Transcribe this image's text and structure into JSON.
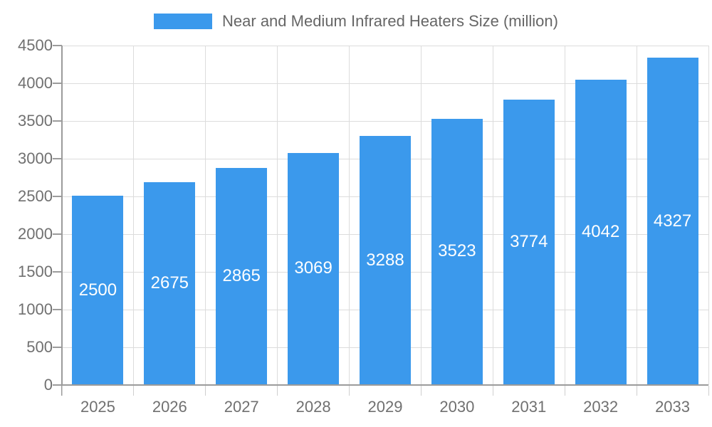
{
  "legend": {
    "label": "Near and Medium Infrared Heaters Size (million)"
  },
  "chart_data": {
    "type": "bar",
    "title": "Near and Medium Infrared Heaters Size (million)",
    "categories": [
      "2025",
      "2026",
      "2027",
      "2028",
      "2029",
      "2030",
      "2031",
      "2032",
      "2033"
    ],
    "series": [
      {
        "name": "Near and Medium Infrared Heaters Size (million)",
        "values": [
          2500,
          2675,
          2865,
          3069,
          3288,
          3523,
          3774,
          4042,
          4327
        ]
      }
    ],
    "xlabel": "",
    "ylabel": "",
    "ylim": [
      0,
      4500
    ],
    "ytick_step": 500,
    "yticks": [
      0,
      500,
      1000,
      1500,
      2000,
      2500,
      3000,
      3500,
      4000,
      4500
    ],
    "grid": true,
    "legend_position": "top-center",
    "bar_color": "#3b99ec",
    "bar_label_color": "#ffffff",
    "bar_label_position": "inside-center",
    "axis_text_color": "#707070"
  }
}
